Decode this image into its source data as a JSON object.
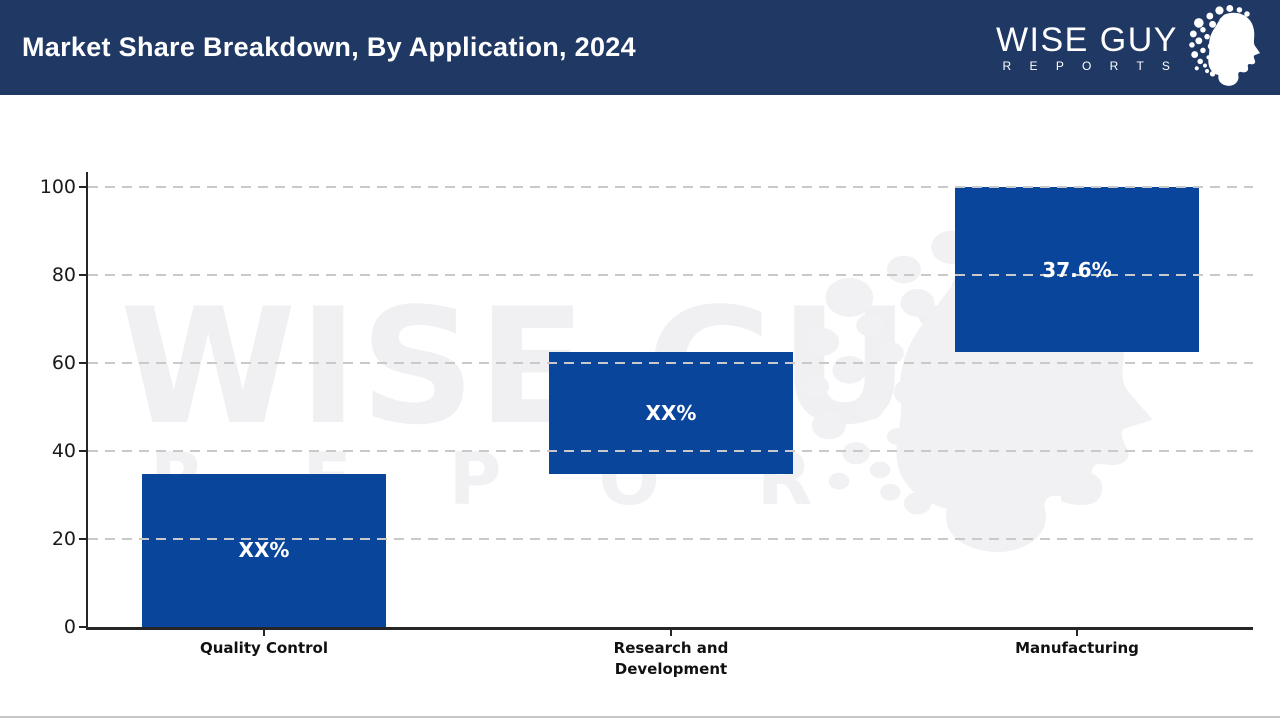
{
  "header": {
    "title": "Market Share Breakdown, By Application, 2024",
    "logo": {
      "line1": "WISE GUY",
      "line2": "R E P O R T S"
    }
  },
  "watermark": {
    "line1": "WISE GUY",
    "line2": "R E P O R T S"
  },
  "chart_data": {
    "type": "bar",
    "subtype": "floating-waterfall",
    "title": "Market Share Breakdown, By Application, 2024",
    "categories": [
      "Quality Control",
      "Research and Development",
      "Manufacturing"
    ],
    "segments": [
      {
        "category": "Quality Control",
        "start": 0,
        "end": 34.8,
        "label": "XX%"
      },
      {
        "category": "Research and Development",
        "start": 34.8,
        "end": 62.4,
        "label": "XX%"
      },
      {
        "category": "Manufacturing",
        "start": 62.4,
        "end": 100,
        "label": "37.6%"
      }
    ],
    "ylim": [
      0,
      100
    ],
    "yticks": [
      0,
      20,
      40,
      60,
      80,
      100
    ],
    "xlabel": "",
    "ylabel": "",
    "grid": "horizontal-dashed",
    "legend": "none",
    "colors": {
      "bar": "#09459a",
      "bar_label": "#ffffff",
      "grid": "#c9c9c9",
      "axis": "#262626",
      "header_bg": "#1f3864",
      "header_text": "#ffffff",
      "watermark": "#f0f0f3"
    }
  }
}
